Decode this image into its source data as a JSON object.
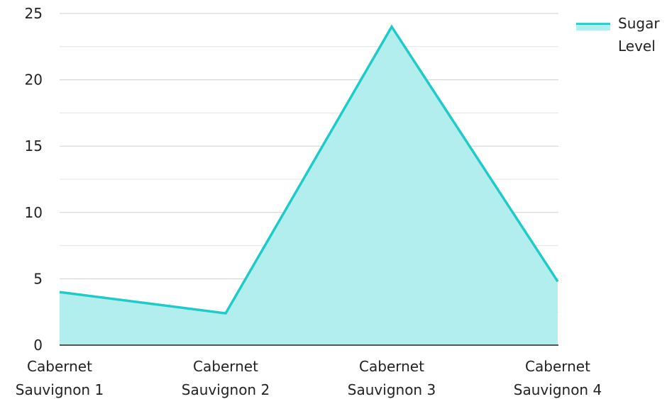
{
  "chart_data": {
    "type": "area",
    "categories": [
      "Cabernet Sauvignon 1",
      "Cabernet Sauvignon 2",
      "Cabernet Sauvignon 3",
      "Cabernet Sauvignon 4"
    ],
    "category_lines": [
      [
        "Cabernet",
        "Sauvignon 1"
      ],
      [
        "Cabernet",
        "Sauvignon 2"
      ],
      [
        "Cabernet",
        "Sauvignon 3"
      ],
      [
        "Cabernet",
        "Sauvignon 4"
      ]
    ],
    "series": [
      {
        "name": "Sugar Level",
        "legend_lines": [
          "Sugar",
          "Level"
        ],
        "values": [
          4,
          2.4,
          24,
          4.8
        ]
      }
    ],
    "ylim": [
      0,
      25
    ],
    "yticks": [
      "0",
      "5",
      "10",
      "15",
      "20",
      "25"
    ],
    "ytick_values": [
      0,
      5,
      10,
      15,
      20,
      25
    ],
    "minor_grid_step": 2.5,
    "grid": true,
    "legend_position": "top-right",
    "colors": {
      "line": "#1ecbc9",
      "fill": "#b2eeed",
      "grid_major": "#cfcfcf",
      "grid_minor": "#e4e4e4",
      "axis": "#222222"
    }
  }
}
